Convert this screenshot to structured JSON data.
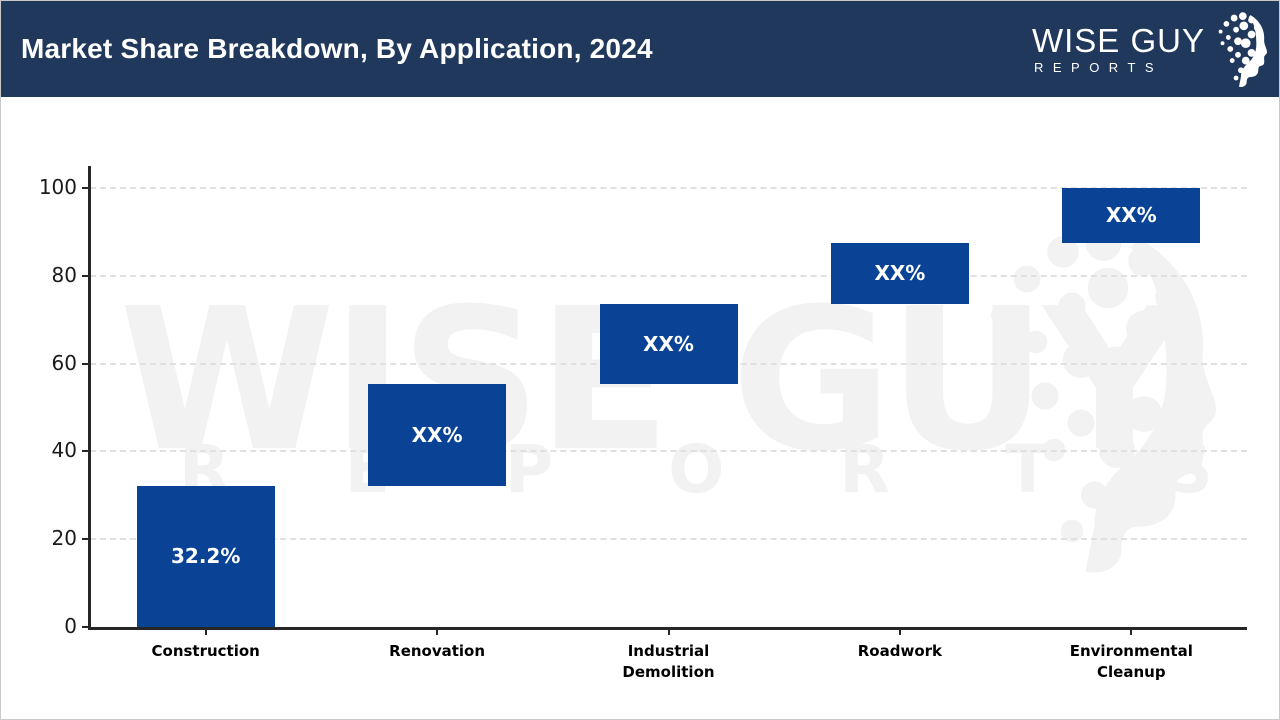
{
  "header": {
    "title": "Market Share Breakdown, By Application, 2024",
    "bg_color": "#20385c",
    "logo": {
      "wordmark": "WISE GUY",
      "subtext": "REPORTS",
      "icon": "head-profile-dots-icon",
      "text_color": "#ffffff"
    }
  },
  "watermark": {
    "wordmark": "WISE GUY",
    "subtext": "R E P O R T S",
    "icon": "head-profile-dots-icon",
    "color": "#f2f2f2"
  },
  "chart_data": {
    "type": "bar",
    "subtype": "waterfall",
    "title": "Market Share Breakdown, By Application, 2024",
    "categories": [
      "Construction",
      "Renovation",
      "Industrial Demolition",
      "Roadwork",
      "Environmental Cleanup"
    ],
    "segments": [
      {
        "category": "Construction",
        "label_lines": [
          "Construction"
        ],
        "start": 0,
        "end": 32.2,
        "value_label": "32.2%"
      },
      {
        "category": "Renovation",
        "label_lines": [
          "Renovation"
        ],
        "start": 32.2,
        "end": 55.3,
        "value_label": "XX%"
      },
      {
        "category": "Industrial Demolition",
        "label_lines": [
          "Industrial",
          "Demolition"
        ],
        "start": 55.3,
        "end": 73.6,
        "value_label": "XX%"
      },
      {
        "category": "Roadwork",
        "label_lines": [
          "Roadwork"
        ],
        "start": 73.6,
        "end": 87.5,
        "value_label": "XX%"
      },
      {
        "category": "Environmental Cleanup",
        "label_lines": [
          "Environmental",
          "Cleanup"
        ],
        "start": 87.5,
        "end": 100,
        "value_label": "XX%"
      }
    ],
    "y_ticks": [
      0,
      20,
      40,
      60,
      80,
      100
    ],
    "ylim": [
      0,
      105
    ],
    "xlabel": "",
    "ylabel": "",
    "legend": "none",
    "grid": "horizontal-dashed",
    "bar_color": "#0a4395",
    "bar_label_color": "#ffffff",
    "axis_color": "#262626",
    "gridline_color": "#e0e0e0"
  }
}
